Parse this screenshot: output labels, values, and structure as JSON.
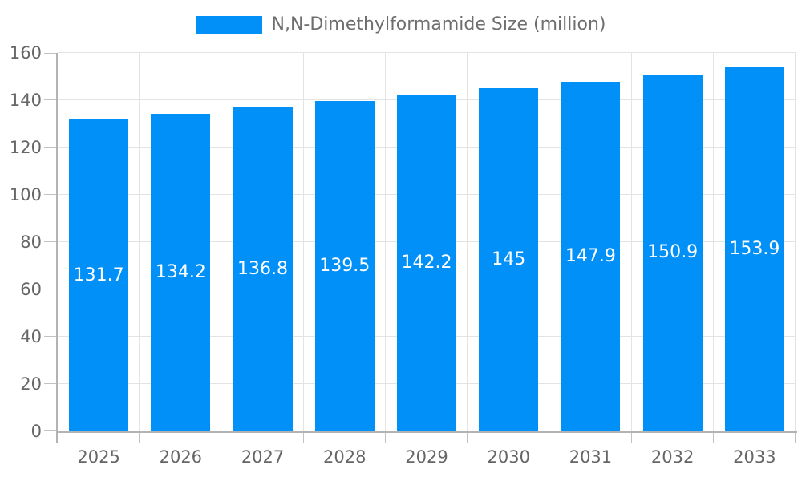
{
  "chart_data": {
    "type": "bar",
    "title": "",
    "categories": [
      "2025",
      "2026",
      "2027",
      "2028",
      "2029",
      "2030",
      "2031",
      "2032",
      "2033"
    ],
    "series": [
      {
        "name": "N,N-Dimethylformamide Size (million)",
        "values": [
          131.7,
          134.2,
          136.8,
          139.5,
          142.2,
          145,
          147.9,
          150.9,
          153.9
        ]
      }
    ],
    "xlabel": "",
    "ylabel": "",
    "ylim": [
      0,
      160
    ],
    "yticks": [
      0,
      20,
      40,
      60,
      80,
      100,
      120,
      140,
      160
    ],
    "grid": true,
    "legend_position": "top",
    "value_label_position": "inside-center"
  },
  "colors": {
    "bar": "#0190f8",
    "value_text": "#ffffff",
    "axis_text": "#666666",
    "legend_text": "#6e6e6e",
    "gridline": "#e3e3e3",
    "tick": "#c2c2c2",
    "axis_line": "#b3b3b3",
    "background": "#ffffff"
  }
}
